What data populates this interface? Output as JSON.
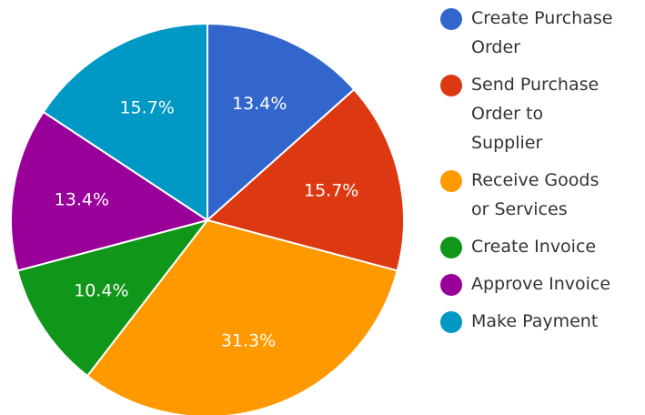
{
  "chart_data": {
    "type": "pie",
    "title": "",
    "legend_position": "right",
    "slices": [
      {
        "label": "Create Purchase Order",
        "legend_text": "Create Purchase\nOrder",
        "value": 13.4,
        "value_label": "13.4%",
        "color": "#3366cc"
      },
      {
        "label": "Send Purchase Order to Supplier",
        "legend_text": "Send Purchase\nOrder to\nSupplier",
        "value": 15.7,
        "value_label": "15.7%",
        "color": "#dc3912"
      },
      {
        "label": "Receive Goods or Services",
        "legend_text": "Receive Goods\nor Services",
        "value": 31.3,
        "value_label": "31.3%",
        "color": "#ff9900"
      },
      {
        "label": "Create Invoice",
        "legend_text": "Create Invoice",
        "value": 10.4,
        "value_label": "10.4%",
        "color": "#109618"
      },
      {
        "label": "Approve Invoice",
        "legend_text": "Approve Invoice",
        "value": 13.4,
        "value_label": "13.4%",
        "color": "#990099"
      },
      {
        "label": "Make Payment",
        "legend_text": "Make Payment",
        "value": 15.7,
        "value_label": "15.7%",
        "color": "#0099c6"
      }
    ]
  }
}
